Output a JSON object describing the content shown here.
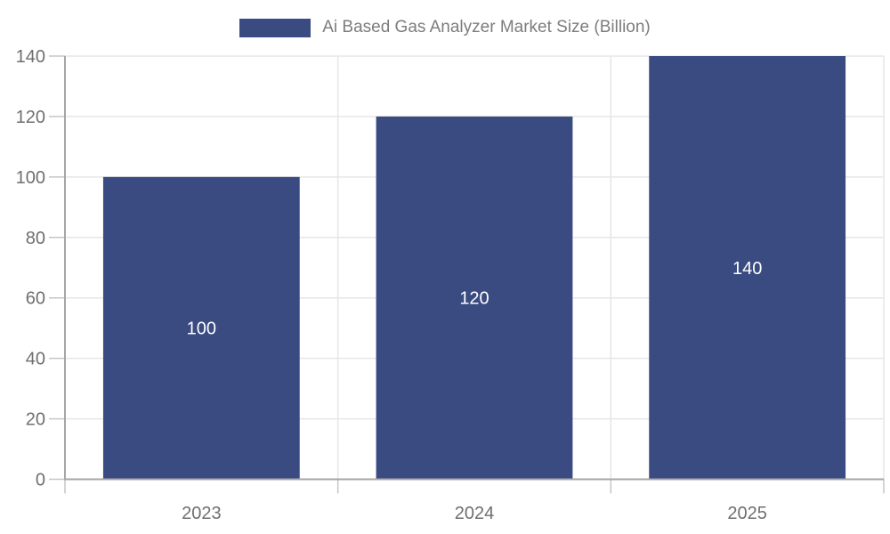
{
  "chart_data": {
    "type": "bar",
    "title": "Ai Based Gas Analyzer Market Size (Billion)",
    "legend": {
      "label": "Ai Based Gas Analyzer Market Size (Billion)",
      "position": "top-center"
    },
    "categories": [
      "2023",
      "2024",
      "2025"
    ],
    "series": [
      {
        "name": "Ai Based Gas Analyzer Market Size (Billion)",
        "values": [
          100,
          120,
          140
        ]
      }
    ],
    "value_labels": [
      "100",
      "120",
      "140"
    ],
    "xlabel": "",
    "ylabel": "",
    "ylim": [
      0,
      140
    ],
    "yticks": [
      0,
      20,
      40,
      60,
      80,
      100,
      120,
      140
    ],
    "grid": true,
    "colors": {
      "bar": "#3a4b81",
      "grid": "#e6e6e6",
      "axis_line": "#a6a6a6",
      "tick": "#c6c6c6",
      "axis_label": "#6f6f6f",
      "value_label": "#ffffff",
      "legend_label": "#7d7d7d",
      "background": "#ffffff"
    }
  }
}
